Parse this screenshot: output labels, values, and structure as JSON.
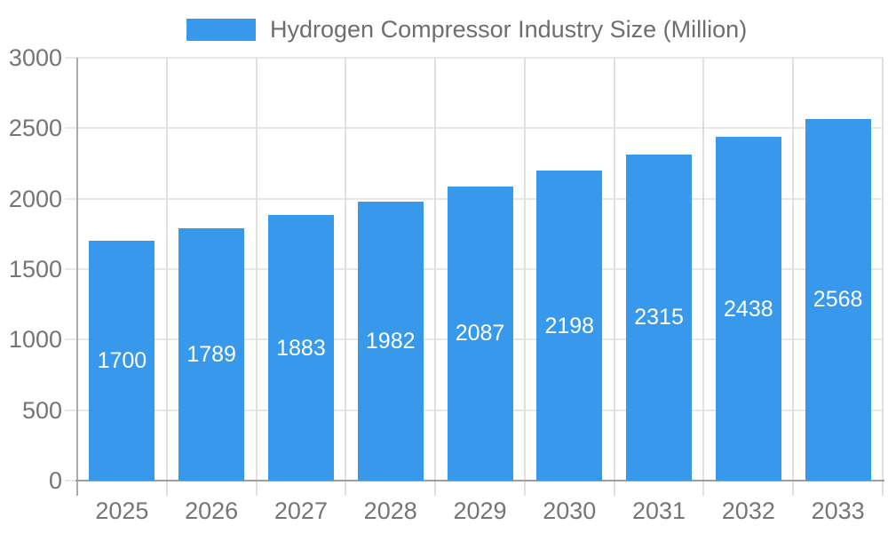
{
  "chart_data": {
    "type": "bar",
    "title": "Hydrogen Compressor Industry Size (Million)",
    "categories": [
      "2025",
      "2026",
      "2027",
      "2028",
      "2029",
      "2030",
      "2031",
      "2032",
      "2033"
    ],
    "series": [
      {
        "name": "Hydrogen Compressor Industry Size (Million)",
        "values": [
          1700,
          1789,
          1883,
          1982,
          2087,
          2198,
          2315,
          2438,
          2568
        ]
      }
    ],
    "value_labels": [
      1700,
      1789,
      1883,
      1982,
      2087,
      2198,
      2315,
      2438,
      2568
    ],
    "xlabel": "",
    "ylabel": "",
    "ylim": [
      0,
      3000
    ],
    "yticks": [
      0,
      500,
      1000,
      1500,
      2000,
      2500,
      3000
    ],
    "grid": true,
    "legend_position": "top",
    "colors": {
      "bar": "#3899ec",
      "axis_label": "#757575",
      "legend_label": "#6e6e6e",
      "value_label": "#ffffff",
      "h_gridline": "#e7e7e7",
      "v_gridline": "#e0e0e0",
      "axis_line": "#ababab",
      "baseline": "#9e9e9e"
    }
  }
}
